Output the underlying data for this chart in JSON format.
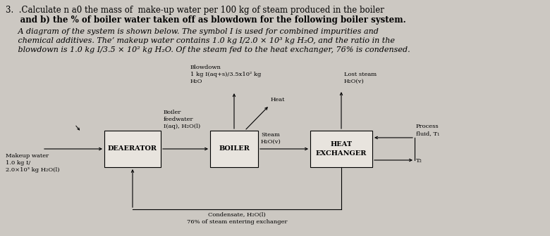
{
  "bg_color": "#ccc8c2",
  "title_line1": "3.  .Calculate n a0 the mass of  make-up water per 100 kg of steam produced in the boiler",
  "title_line2": "     and b) the % of boiler water taken off as blowdown for the following boiler system.",
  "para_line1": "     A diagram of the system is shown below. The symbol I is used for combined impurities and",
  "para_line2": "     chemical additives. Theʼ makeup water contains 1.0 kg I/2.0 × 10³ kg H₂O, and the ratio in the",
  "para_line3": "     blowdown is 1.0 kg I/3.5 × 10² kg H₂O. Of the steam fed to the heat exchanger, 76% is condensed.",
  "box_deaerator_label": "DEAERATOR",
  "box_boiler_label": "BOILER",
  "box_hx_label": "HEAT\nEXCHANGER",
  "boiler_feedwater_label": "Boiler\nfeedwater\nI(aq), H₂O(l)",
  "blowdown_label": "Blowdown\n1 kg I(aq+s)/3.5x10² kg\nH₂O",
  "lost_steam_label": "Lost steam\nH₂O(v)",
  "heat_label": "Heat",
  "steam_label": "Steam\nH₂O(v)",
  "process_fluid_label": "Process\nfluid, T₁",
  "makeup_water_label": "Makeup water\n1.0 kg I/\n2.0×10³ kg H₂O(l)",
  "condensate_label": "Condensate, H₂O(l)\n76% of steam entering exchanger",
  "T2_label": "T₂",
  "font_size_title": 8.5,
  "font_size_para": 8.0,
  "font_size_box": 7.0,
  "font_size_label": 6.5,
  "font_size_small": 6.0
}
